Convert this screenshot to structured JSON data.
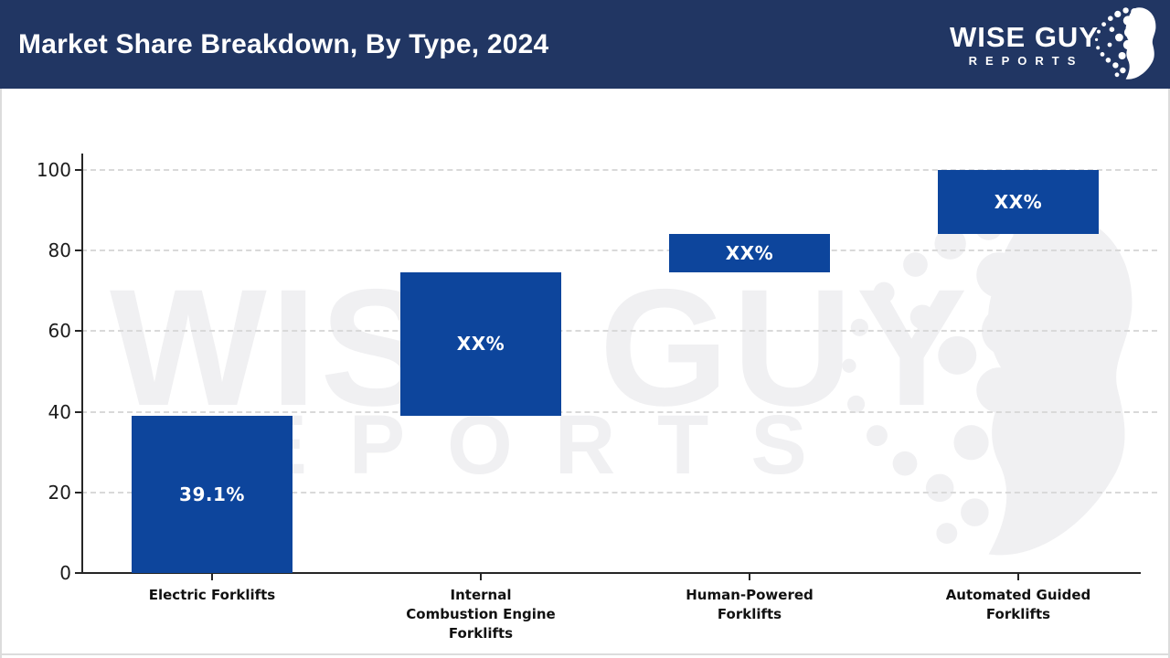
{
  "header": {
    "title": "Market Share Breakdown, By Type, 2024",
    "bg_color": "#213663",
    "logo": {
      "line1": "WISE GUY",
      "line2": "REPORTS",
      "head_icon": "dotted-face-profile"
    }
  },
  "watermark": {
    "line1": "WISE GUY",
    "line2": "REPORTS",
    "color": "#f0f0f2"
  },
  "chart_data": {
    "type": "bar",
    "subtype": "waterfall",
    "title": "Market Share Breakdown, By Type, 2024",
    "xlabel": "",
    "ylabel": "",
    "ylim": [
      0,
      104
    ],
    "yticks": [
      0,
      20,
      40,
      60,
      80,
      100
    ],
    "grid": "horizontal-dashed",
    "legend": "none",
    "bar_color": "#0d459c",
    "value_label_color": "#ffffff",
    "categories": [
      "Electric Forklifts",
      "Internal\nCombustion Engine\nForklifts",
      "Human-Powered\nForklifts",
      "Automated Guided\nForklifts"
    ],
    "segments": [
      {
        "category": "Electric Forklifts",
        "label": "39.1%",
        "start": 0,
        "end": 39.1,
        "delta": 39.1
      },
      {
        "category": "Internal Combustion Engine Forklifts",
        "label": "XX%",
        "start": 39.1,
        "end": 74.7,
        "delta": 35.6
      },
      {
        "category": "Human-Powered Forklifts",
        "label": "XX%",
        "start": 74.7,
        "end": 84.2,
        "delta": 9.5
      },
      {
        "category": "Automated Guided Forklifts",
        "label": "XX%",
        "start": 84.2,
        "end": 100,
        "delta": 15.8
      }
    ]
  }
}
